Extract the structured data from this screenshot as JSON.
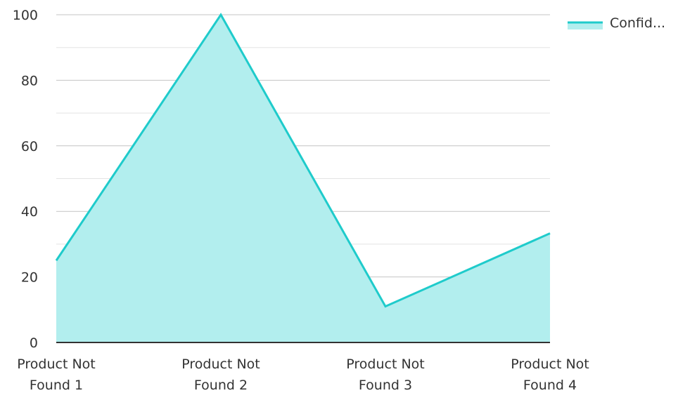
{
  "chart_data": {
    "type": "area",
    "categories": [
      [
        "Product Not",
        "Found 1"
      ],
      [
        "Product Not",
        "Found 2"
      ],
      [
        "Product Not",
        "Found 3"
      ],
      [
        "Product Not",
        "Found 4"
      ]
    ],
    "series": [
      {
        "name": "Confid...",
        "values": [
          25,
          100,
          11,
          33.3
        ]
      }
    ],
    "ylim": [
      0,
      100
    ],
    "yticks": [
      0,
      20,
      40,
      60,
      80,
      100
    ],
    "minor_grid": true,
    "grid": true,
    "legend_position": "top-right",
    "colors": {
      "line": "#1fcbcb",
      "fill": "#b2eeee",
      "grid_major": "#c4c4c4",
      "grid_minor": "#e3e3e3",
      "axis": "#333333"
    }
  }
}
